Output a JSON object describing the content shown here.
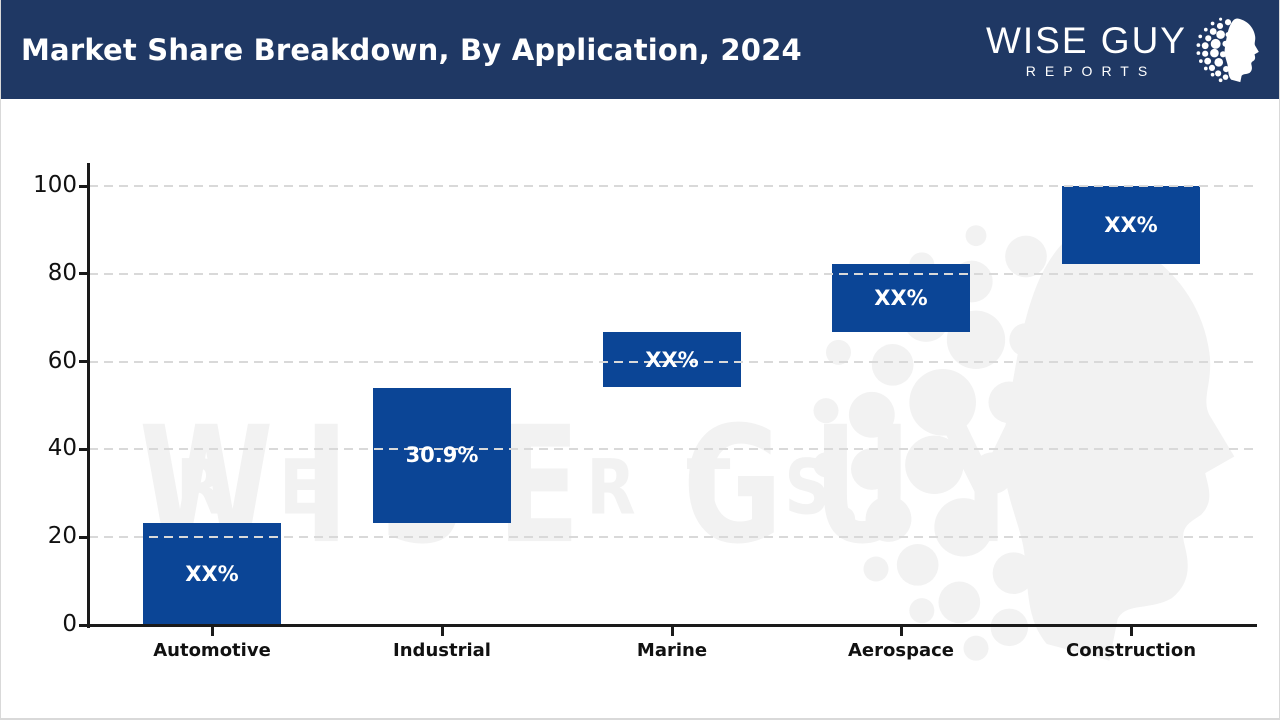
{
  "header": {
    "title": "Market Share Breakdown, By Application, 2024",
    "logo": {
      "line1": "WISE GUY",
      "line2": "REPORTS"
    }
  },
  "watermark": {
    "line1": "WISE GUY",
    "line2": "REPORTS"
  },
  "colors": {
    "header_bg": "#1F3864",
    "bar": "#0B4596",
    "grid": "#D9D9D9",
    "axis": "#1A1A1A",
    "watermark": "#F2F2F2",
    "bar_label": "#FFFFFF"
  },
  "chart_data": {
    "type": "bar",
    "variant": "waterfall",
    "title": "Market Share Breakdown, By Application, 2024",
    "categories": [
      "Automotive",
      "Industrial",
      "Marine",
      "Aerospace",
      "Construction"
    ],
    "segments": [
      {
        "category": "Automotive",
        "start": 0,
        "end": 23.2,
        "label": "XX%"
      },
      {
        "category": "Industrial",
        "start": 23.2,
        "end": 54.1,
        "label": "30.9%"
      },
      {
        "category": "Marine",
        "start": 54.1,
        "end": 66.8,
        "label": "XX%"
      },
      {
        "category": "Aerospace",
        "start": 66.8,
        "end": 82.3,
        "label": "XX%"
      },
      {
        "category": "Construction",
        "start": 82.3,
        "end": 100,
        "label": "XX%"
      }
    ],
    "xlabel": "",
    "ylabel": "",
    "ylim": [
      0,
      100
    ],
    "y_ticks": [
      0,
      20,
      40,
      60,
      80,
      100
    ],
    "grid": "horizontal-dashed",
    "legend": "none"
  }
}
